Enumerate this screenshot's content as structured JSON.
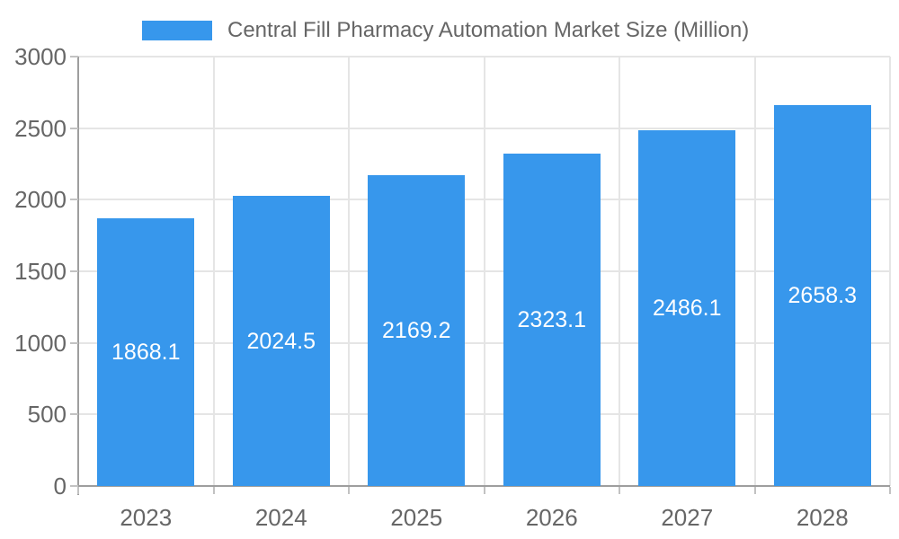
{
  "colors": {
    "bar": "#3797EC",
    "grid": "#E5E5E5",
    "axis": "#9E9E9E",
    "tick_mark": "#C2C2C2",
    "text": "#666666",
    "value_label": "#FFFFFF",
    "background": "#FFFFFF"
  },
  "legend": {
    "label": "Central Fill Pharmacy Automation Market Size (Million)",
    "swatch_color": "#3797EC"
  },
  "chart_data": {
    "type": "bar",
    "title": "Central Fill Pharmacy Automation Market Size (Million)",
    "categories": [
      "2023",
      "2024",
      "2025",
      "2026",
      "2027",
      "2028"
    ],
    "values": [
      1868.1,
      2024.5,
      2169.2,
      2323.1,
      2486.1,
      2658.3
    ],
    "value_labels": [
      "1868.1",
      "2024.5",
      "2169.2",
      "2323.1",
      "2486.1",
      "2658.3"
    ],
    "series": [
      {
        "name": "Central Fill Pharmacy Automation Market Size (Million)",
        "values": [
          1868.1,
          2024.5,
          2169.2,
          2323.1,
          2486.1,
          2658.3
        ]
      }
    ],
    "xlabel": "",
    "ylabel": "",
    "ylim": [
      0,
      3000
    ],
    "ytick_step": 500,
    "yticks": [
      "0",
      "500",
      "1000",
      "1500",
      "2000",
      "2500",
      "3000"
    ],
    "grid": true,
    "legend_position": "top",
    "value_label_position": "inside-center"
  }
}
